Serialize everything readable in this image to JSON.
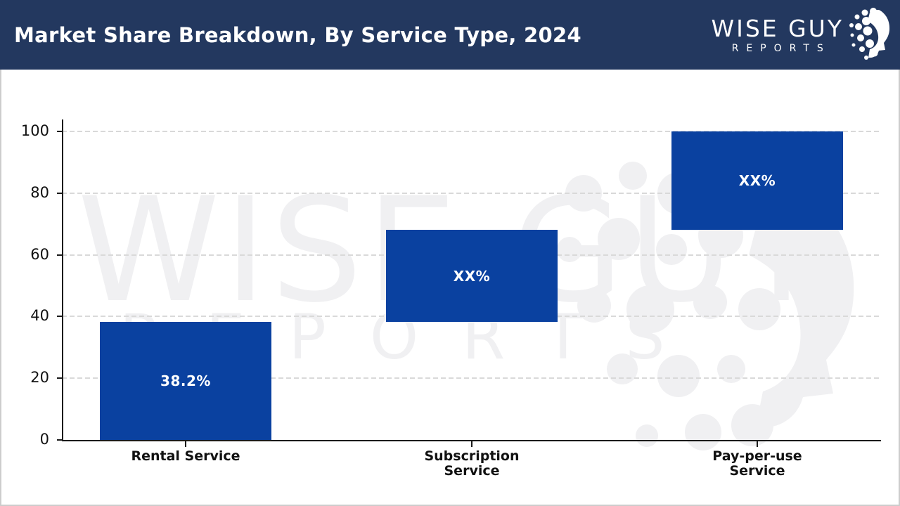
{
  "header": {
    "title": "Market Share Breakdown, By Service Type, 2024"
  },
  "logo": {
    "primary": "WISE GUY",
    "secondary": "REPORTS"
  },
  "watermark": {
    "primary": "WISE GUY",
    "secondary": "REPORTS"
  },
  "chart_data": {
    "type": "bar",
    "subtype": "floating-segment-waterfall",
    "title": "Market Share Breakdown, By Service Type, 2024",
    "categories": [
      "Rental Service",
      "Subscription Service",
      "Pay-per-use Service"
    ],
    "category_label_lines": [
      [
        "Rental Service"
      ],
      [
        "Subscription",
        "Service"
      ],
      [
        "Pay-per-use",
        "Service"
      ]
    ],
    "series": [
      {
        "name": "Market share (%)",
        "segments": [
          [
            0,
            38.2
          ],
          [
            38.2,
            68
          ],
          [
            68,
            100
          ]
        ],
        "labels": [
          "38.2%",
          "XX%",
          "XX%"
        ]
      }
    ],
    "ylim": [
      0,
      100
    ],
    "yticks": [
      0,
      20,
      40,
      60,
      80,
      100
    ],
    "grid": {
      "horizontal": true,
      "style": "dashed"
    },
    "legend_position": "none",
    "colors": {
      "bar": "#0a41a0",
      "axis": "#1a1a1a",
      "gridline": "#d9d9d9",
      "bar_label_text": "#ffffff",
      "tick_text": "#111111",
      "header_bg": "#23385f",
      "header_text": "#ffffff",
      "watermark": "#f0f0f2"
    }
  }
}
